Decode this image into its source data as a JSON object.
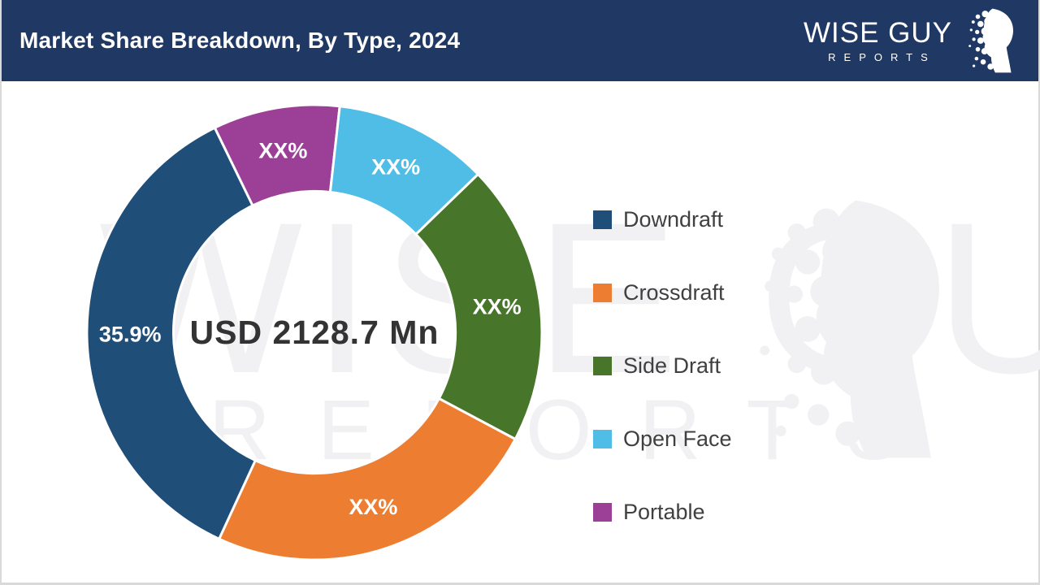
{
  "header": {
    "title": "Market Share Breakdown, By Type, 2024",
    "logo": {
      "brand_top": "WISE GUY",
      "brand_bottom": "REPORTS"
    }
  },
  "watermark": {
    "line1": "WISE GUY",
    "line2": "REPORTS"
  },
  "chart_data": {
    "type": "donut",
    "title": "Market Share Breakdown, By Type, 2024",
    "center_label": "USD 2128.7 Mn",
    "unit": "percent share of market",
    "start_angle_deg": -26,
    "hole_ratio": 0.62,
    "segments": [
      {
        "label": "Portable",
        "value": 9.0,
        "display_label": "XX%",
        "color": "#9C3F96"
      },
      {
        "label": "Open Face",
        "value": 11.0,
        "display_label": "XX%",
        "color": "#4FBDE6"
      },
      {
        "label": "Side Draft",
        "value": 20.0,
        "display_label": "XX%",
        "color": "#47762A"
      },
      {
        "label": "Crossdraft",
        "value": 24.1,
        "display_label": "XX%",
        "color": "#ED7D31"
      },
      {
        "label": "Downdraft",
        "value": 35.9,
        "display_label": "35.9%",
        "color": "#1F4E79"
      }
    ],
    "legend_position": "right"
  },
  "legend": {
    "items": [
      {
        "label": "Downdraft",
        "color": "#1F4E79"
      },
      {
        "label": "Crossdraft",
        "color": "#ED7D31"
      },
      {
        "label": "Side Draft",
        "color": "#47762A"
      },
      {
        "label": "Open Face",
        "color": "#4FBDE6"
      },
      {
        "label": "Portable",
        "color": "#9C3F96"
      }
    ]
  },
  "colors": {
    "header_bg": "#1F3864",
    "center_text": "#333333",
    "segment_label_text": "#FFFFFF",
    "legend_text": "#404040",
    "page_border": "#D9D9D9",
    "watermark": "#F1F1F4"
  }
}
